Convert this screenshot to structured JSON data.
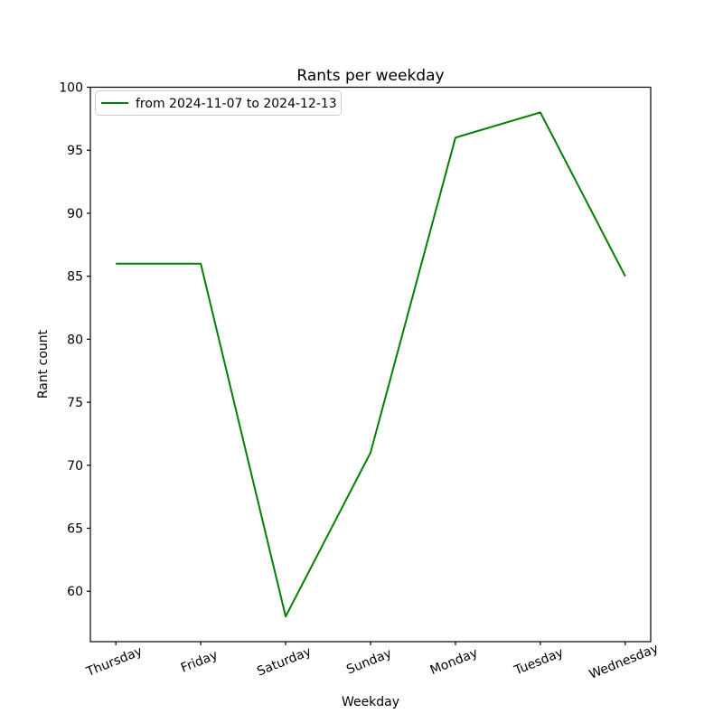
{
  "figure": {
    "background_color": "#ffffff",
    "axes_edge_color": "#000000",
    "legend_border_color": "#cccccc"
  },
  "chart_data": {
    "type": "line",
    "title": "Rants per weekday",
    "xlabel": "Weekday",
    "ylabel": "Rant count",
    "categories": [
      "Thursday",
      "Friday",
      "Saturday",
      "Sunday",
      "Monday",
      "Tuesday",
      "Wednesday"
    ],
    "series": [
      {
        "name": "from 2024-11-07 to 2024-12-13",
        "values": [
          86,
          86,
          58,
          71,
          96,
          98,
          85
        ],
        "color": "#008000"
      }
    ],
    "yticks": [
      60,
      65,
      70,
      75,
      80,
      85,
      90,
      95,
      100
    ],
    "ylim": [
      56,
      100
    ],
    "x_margin": 0.3,
    "x_tick_rotation_deg": 22,
    "grid": false,
    "legend_position": "upper left"
  }
}
